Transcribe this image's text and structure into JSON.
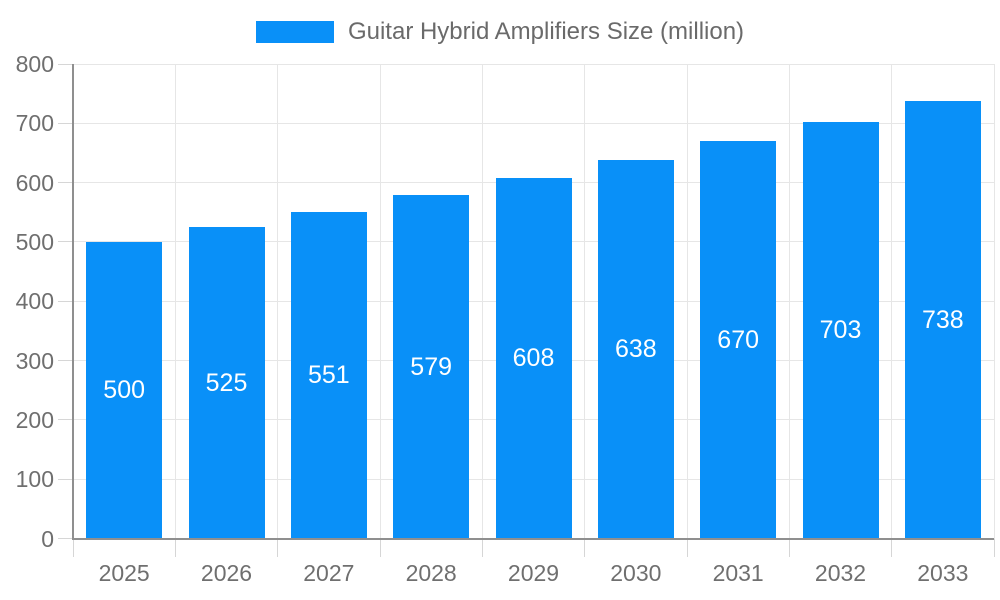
{
  "legend": {
    "label": "Guitar Hybrid Amplifiers Size (million)"
  },
  "colors": {
    "bar": "#0990f8",
    "value_label": "#ffffff",
    "axis_label": "#6f6f6f",
    "legend_text": "#6a6a6a",
    "gridline": "#e6e6e6",
    "axis_line": "#8f8f8f"
  },
  "chart_data": {
    "type": "bar",
    "title": "Guitar Hybrid Amplifiers Size (million)",
    "categories": [
      "2025",
      "2026",
      "2027",
      "2028",
      "2029",
      "2030",
      "2031",
      "2032",
      "2033"
    ],
    "values": [
      500,
      525,
      551,
      579,
      608,
      638,
      670,
      703,
      738
    ],
    "xlabel": "",
    "ylabel": "",
    "ylim": [
      0,
      800
    ],
    "yticks": [
      0,
      100,
      200,
      300,
      400,
      500,
      600,
      700,
      800
    ],
    "grid": true,
    "legend_position": "top-center",
    "bar_color": "#0990f8",
    "value_label_style": "white, centered inside bar"
  }
}
